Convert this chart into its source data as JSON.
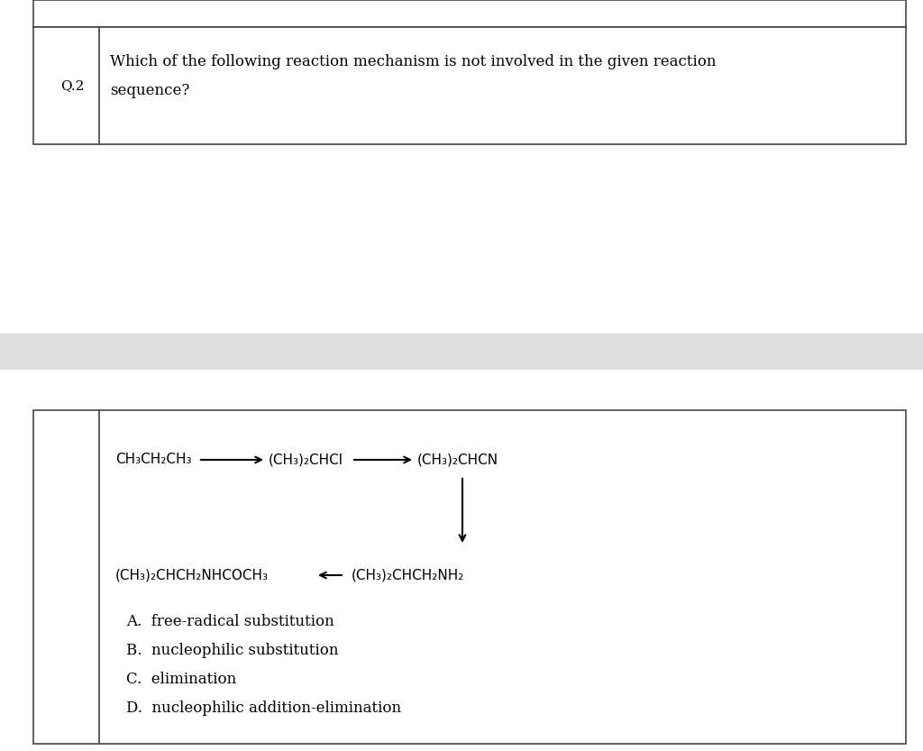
{
  "background_color": "#ffffff",
  "table_border_color": "#444444",
  "shaded_band_color": "#dcdcdc",
  "q_label": "Q.2",
  "q_text_line1": "Which of the following reaction mechanism is not involved in the given reaction",
  "q_text_line2": "sequence?",
  "chem_line1_left": "CH₃CH₂CH₃",
  "chem_line1_mid": "(CH₃)₂CHCl",
  "chem_line1_right": "(CH₃)₂CHCN",
  "chem_line2_left": "(CH₃)₂CHCH₂NHCOCH₃",
  "chem_line2_right": "(CH₃)₂CHCH₂NH₂",
  "options": [
    "A.  free-radical substitution",
    "B.  nucleophilic substitution",
    "C.  elimination",
    "D.  nucleophilic addition-elimination"
  ],
  "font_size_q_label": 11,
  "font_size_q_text": 12,
  "font_size_chem": 11,
  "font_size_options": 12
}
